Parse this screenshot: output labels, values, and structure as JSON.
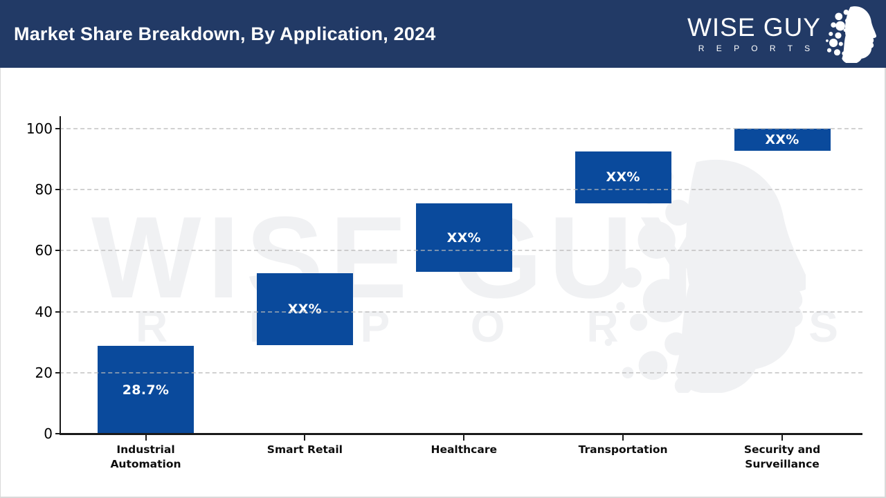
{
  "header": {
    "title": "Market Share Breakdown, By Application, 2024",
    "logo": {
      "name": "WISE GUY",
      "sub": "R E P O R T S"
    }
  },
  "watermark": {
    "name": "WISE GUY",
    "sub": "R E P O R T S"
  },
  "colors": {
    "header_bg": "#223A66",
    "bar_fill": "#0A4A9C",
    "bar_label_text": "#FFFFFF",
    "grid_line": "#C9C9C9",
    "axis_line": "#1A1A1A",
    "tick_text": "#000000",
    "watermark_gray": "#F0F1F3"
  },
  "chart_data": {
    "type": "bar",
    "variant": "waterfall",
    "title": "Market Share Breakdown, By Application, 2024",
    "xlabel": "",
    "ylabel": "",
    "ylim": [
      0,
      107
    ],
    "yticks": [
      0,
      20,
      40,
      60,
      80,
      100
    ],
    "grid": "horizontal-dashed-over-bars",
    "legend": "none",
    "categories": [
      "Industrial Automation",
      "Smart Retail",
      "Healthcare",
      "Transportation",
      "Security and Surveillance"
    ],
    "category_lines": [
      [
        "Industrial",
        "Automation"
      ],
      [
        "Smart Retail"
      ],
      [
        "Healthcare"
      ],
      [
        "Transportation"
      ],
      [
        "Security and",
        "Surveillance"
      ]
    ],
    "segments": [
      {
        "category": "Industrial Automation",
        "start": 0,
        "end": 28.7,
        "label": "28.7%"
      },
      {
        "category": "Smart Retail",
        "start": 29.0,
        "end": 52.5,
        "label": "XX%"
      },
      {
        "category": "Healthcare",
        "start": 53.0,
        "end": 75.4,
        "label": "XX%"
      },
      {
        "category": "Transportation",
        "start": 75.6,
        "end": 92.5,
        "label": "XX%"
      },
      {
        "category": "Security and Surveillance",
        "start": 92.8,
        "end": 100.0,
        "label": "XX%"
      }
    ]
  }
}
